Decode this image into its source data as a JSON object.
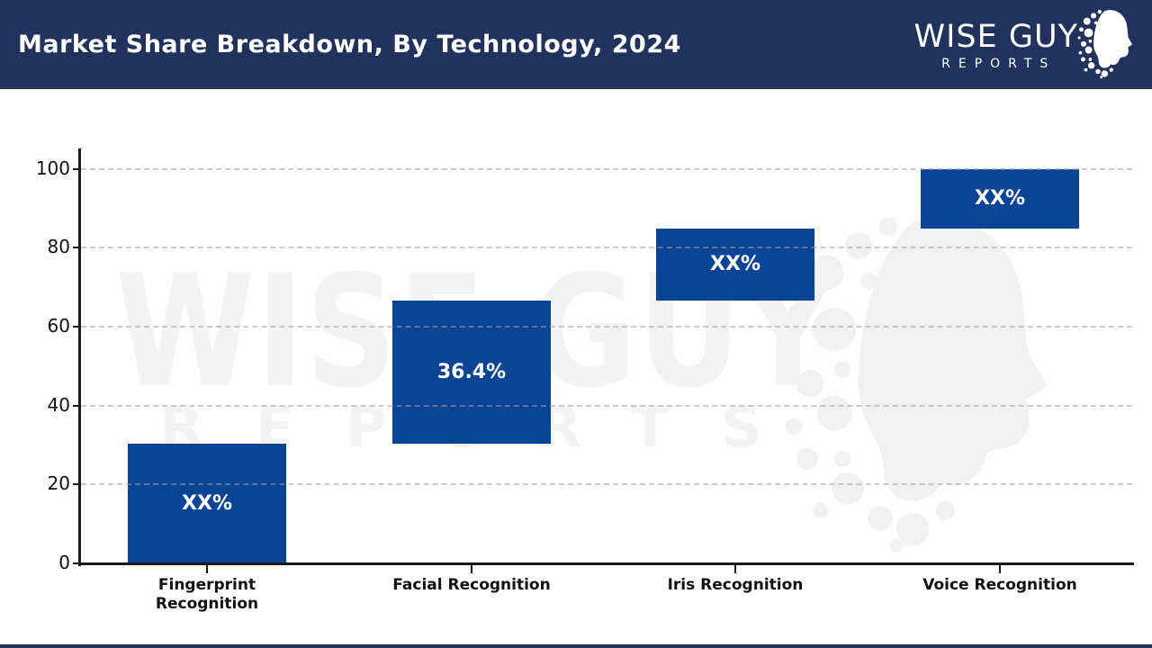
{
  "header": {
    "title": "Market Share Breakdown, By Technology, 2024",
    "logo": {
      "line1": "WISE GUY",
      "line2": "REPORTS"
    }
  },
  "watermark": {
    "line1": "WISE GUY",
    "line2": "REPORTS"
  },
  "chart_data": {
    "type": "bar",
    "subtype": "waterfall-floating-segments",
    "title": "Market Share Breakdown, By Technology, 2024",
    "xlabel": "",
    "ylabel": "",
    "ylim": [
      0,
      100
    ],
    "yticks": [
      0,
      20,
      40,
      60,
      80,
      100
    ],
    "grid": "horizontal-dashed",
    "legend": "none",
    "bar_color": "#0a4595",
    "bar_label_color": "#ffffff",
    "categories": [
      "Fingerprint Recognition",
      "Facial Recognition",
      "Iris Recognition",
      "Voice Recognition"
    ],
    "category_label_lines": [
      [
        "Fingerprint",
        "Recognition"
      ],
      [
        "Facial Recognition"
      ],
      [
        "Iris Recognition"
      ],
      [
        "Voice Recognition"
      ]
    ],
    "segments": [
      {
        "category": "Fingerprint Recognition",
        "start": 0,
        "end": 30.3,
        "value_label": "XX%"
      },
      {
        "category": "Facial Recognition",
        "start": 30.3,
        "end": 66.7,
        "value_label": "36.4%"
      },
      {
        "category": "Iris Recognition",
        "start": 66.7,
        "end": 84.9,
        "value_label": "XX%"
      },
      {
        "category": "Voice Recognition",
        "start": 84.9,
        "end": 100,
        "value_label": "XX%"
      }
    ]
  },
  "colors": {
    "header_background": "#21335c",
    "footer_background": "#21335c",
    "bar": "#0a4595",
    "gridline": "#d9d9d9",
    "axis": "#1a1a1a",
    "watermark": "#f0f1f3"
  }
}
